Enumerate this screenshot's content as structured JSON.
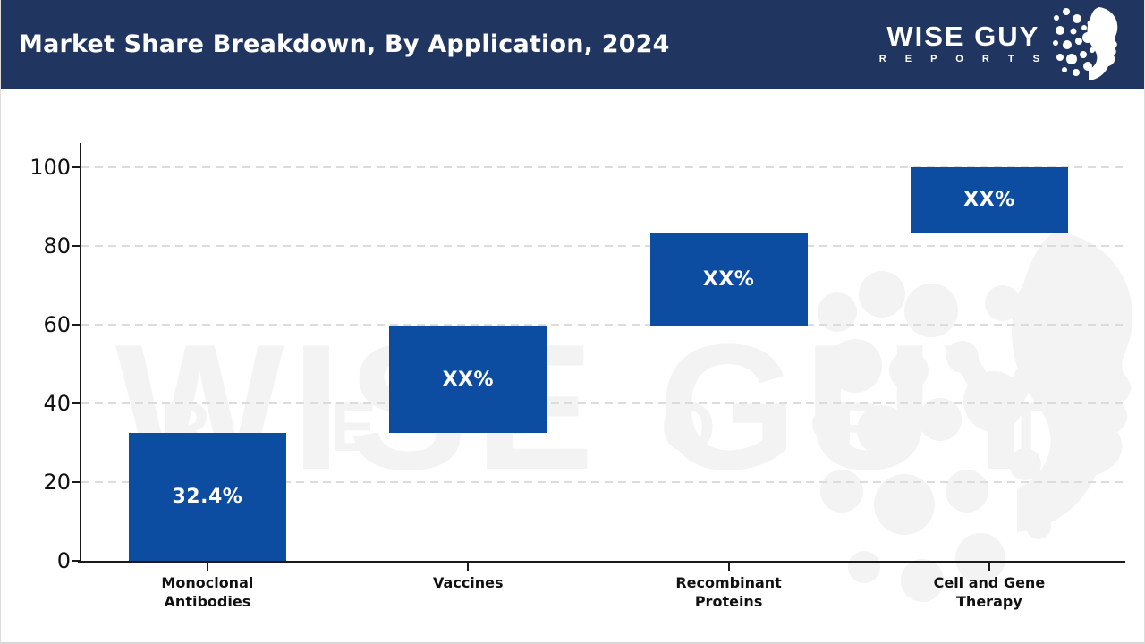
{
  "header": {
    "title": "Market Share Breakdown, By Application, 2024",
    "logo_line1": "WISE GUY",
    "logo_line2": "R E P O R T S"
  },
  "watermark": {
    "line1": "WISE GUY",
    "line2": "R E P O R T S"
  },
  "colors": {
    "header_bg": "#20355f",
    "bar": "#0d4da1",
    "bar_label": "#ffffff",
    "grid": "#dcdcdc",
    "axis": "#1a1a1a",
    "watermark": "#f3f3f3",
    "title_text": "#ffffff",
    "tick_text": "#111111"
  },
  "chart_data": {
    "type": "bar",
    "subtype": "waterfall",
    "title": "Market Share Breakdown, By Application, 2024",
    "xlabel": "",
    "ylabel": "",
    "categories": [
      [
        "Monoclonal",
        "Antibodies"
      ],
      [
        "Vaccines"
      ],
      [
        "Recombinant",
        "Proteins"
      ],
      [
        "Cell and Gene",
        "Therapy"
      ]
    ],
    "segments": [
      {
        "category": "Monoclonal Antibodies",
        "start": 0,
        "end": 32.4,
        "label": "32.4%"
      },
      {
        "category": "Vaccines",
        "start": 32.4,
        "end": 59.5,
        "label": "XX%"
      },
      {
        "category": "Recombinant Proteins",
        "start": 59.5,
        "end": 83.4,
        "label": "XX%"
      },
      {
        "category": "Cell and Gene Therapy",
        "start": 83.4,
        "end": 100,
        "label": "XX%"
      }
    ],
    "yticks": [
      0,
      20,
      40,
      60,
      80,
      100
    ],
    "ylim": [
      0,
      107
    ],
    "grid": "horizontal-dashed",
    "legend": "none"
  }
}
